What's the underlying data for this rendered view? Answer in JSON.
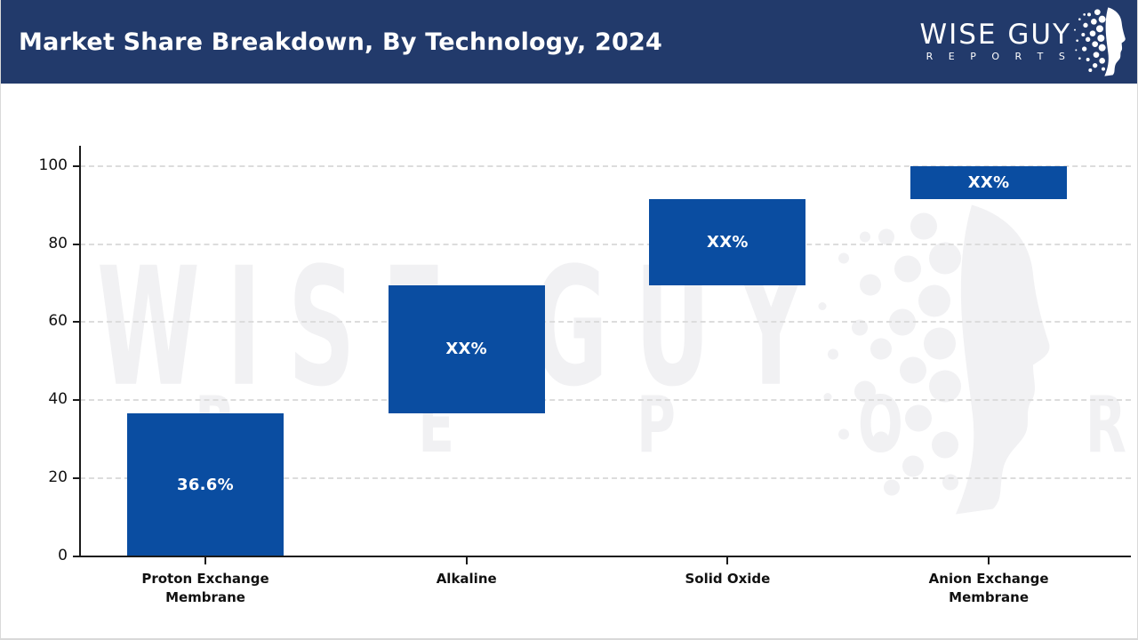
{
  "header": {
    "title": "Market Share Breakdown, By Technology, 2024",
    "bg_color": "#223a6b",
    "logo": {
      "brand": "WISE GUY",
      "sub": "R E P O R T S"
    }
  },
  "watermark": {
    "brand": "WISE GUY",
    "sub": "R  E  P  O  R  T  S"
  },
  "chart_data": {
    "type": "bar",
    "variant": "waterfall",
    "title": "Market Share Breakdown, By Technology, 2024",
    "categories": [
      "Proton Exchange\nMembrane",
      "Alkaline",
      "Solid Oxide",
      "Anion Exchange\nMembrane"
    ],
    "segments": [
      {
        "category": "Proton Exchange Membrane",
        "start": 0,
        "end": 36.6,
        "label": "36.6%"
      },
      {
        "category": "Alkaline",
        "start": 36.6,
        "end": 69.5,
        "label": "XX%"
      },
      {
        "category": "Solid Oxide",
        "start": 69.5,
        "end": 91.6,
        "label": "XX%"
      },
      {
        "category": "Anion Exchange Membrane",
        "start": 91.6,
        "end": 100,
        "label": "XX%"
      }
    ],
    "y_ticks": [
      0,
      20,
      40,
      60,
      80,
      100
    ],
    "ylim": [
      0,
      105
    ],
    "xlabel": "",
    "ylabel": "",
    "bar_color": "#0a4da1",
    "grid": "dashed-horizontal",
    "legend": "none"
  }
}
